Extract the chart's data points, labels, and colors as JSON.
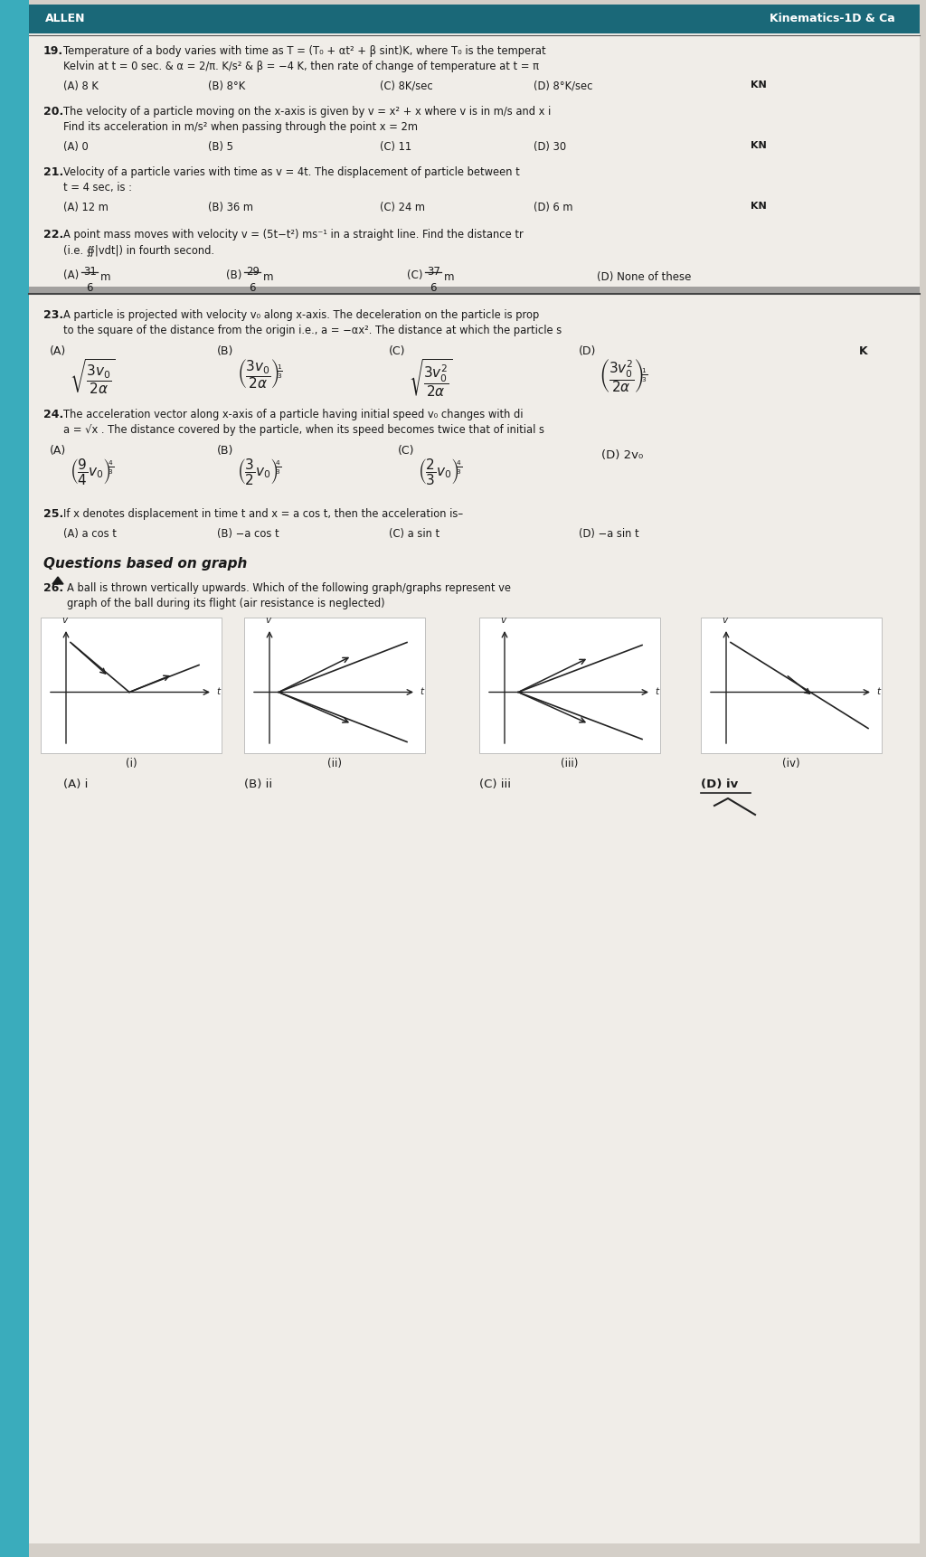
{
  "background_color": "#d4cfc8",
  "page_bg": "#f0ede8",
  "left_tab_color": "#3aacbc",
  "header_bg": "#1a6878",
  "header_right": "Kinematics-1D & Ca",
  "header_left": "ALLEN",
  "q19_line1": "Temperature of a body varies with time as T = (T₀ + αt² + β sint)K, where T₀ is the temperat",
  "q19_line2": "Kelvin at t = 0 sec. & α = 2/π. K/s² & β = −4 K, then rate of change of temperature at t = π",
  "q19_opts": [
    "(A) 8 K",
    "(B) 8°K",
    "(C) 8K/sec",
    "(D) 8°K/sec"
  ],
  "q20_line1": "The velocity of a particle moving on the x-axis is given by v = x² + x where v is in m/s and x i",
  "q20_line2": "Find its acceleration in m/s² when passing through the point x = 2m",
  "q20_opts": [
    "(A) 0",
    "(B) 5",
    "(C) 11",
    "(D) 30"
  ],
  "q21_line1": "Velocity of a particle varies with time as v = 4t. The displacement of particle between t",
  "q21_line2": "t = 4 sec, is :",
  "q21_opts": [
    "(A) 12 m",
    "(B) 36 m",
    "(C) 24 m",
    "(D) 6 m"
  ],
  "q22_line1": "A point mass moves with velocity v = (5t−t²) ms⁻¹ in a straight line. Find the distance tr",
  "q22_line2": "(i.e. ∯|vdt|) in fourth second.",
  "q23_line1": "A particle is projected with velocity v₀ along x-axis. The deceleration on the particle is prop",
  "q23_line2": "to the square of the distance from the origin i.e., a = −αx². The distance at which the particle s",
  "q24_line1": "The acceleration vector along x-axis of a particle having initial speed v₀ changes with di",
  "q24_line2": "a = √x . The distance covered by the particle, when its speed becomes twice that of initial s",
  "q25_line": "If x denotes displacement in time t and x = a cos t, then the acceleration is–",
  "q25_opts": [
    "(A) a cos t",
    "(B) −a cos t",
    "(C) a sin t",
    "(D) −a sin t"
  ],
  "section_header": "Questions based on graph",
  "q26_line1": "A ball is thrown vertically upwards. Which of the following graph/graphs represent ve",
  "q26_line2": "graph of the ball during its flight (air resistance is neglected)",
  "graph_labels": [
    "(i)",
    "(ii)",
    "(iii)",
    "(iv)"
  ],
  "ans_labels": [
    "(A) i",
    "(B) ii",
    "(C) iii",
    "(D) iv"
  ],
  "text_color": "#1a1a1a",
  "line_color": "#222222",
  "KN_color": "#111111"
}
